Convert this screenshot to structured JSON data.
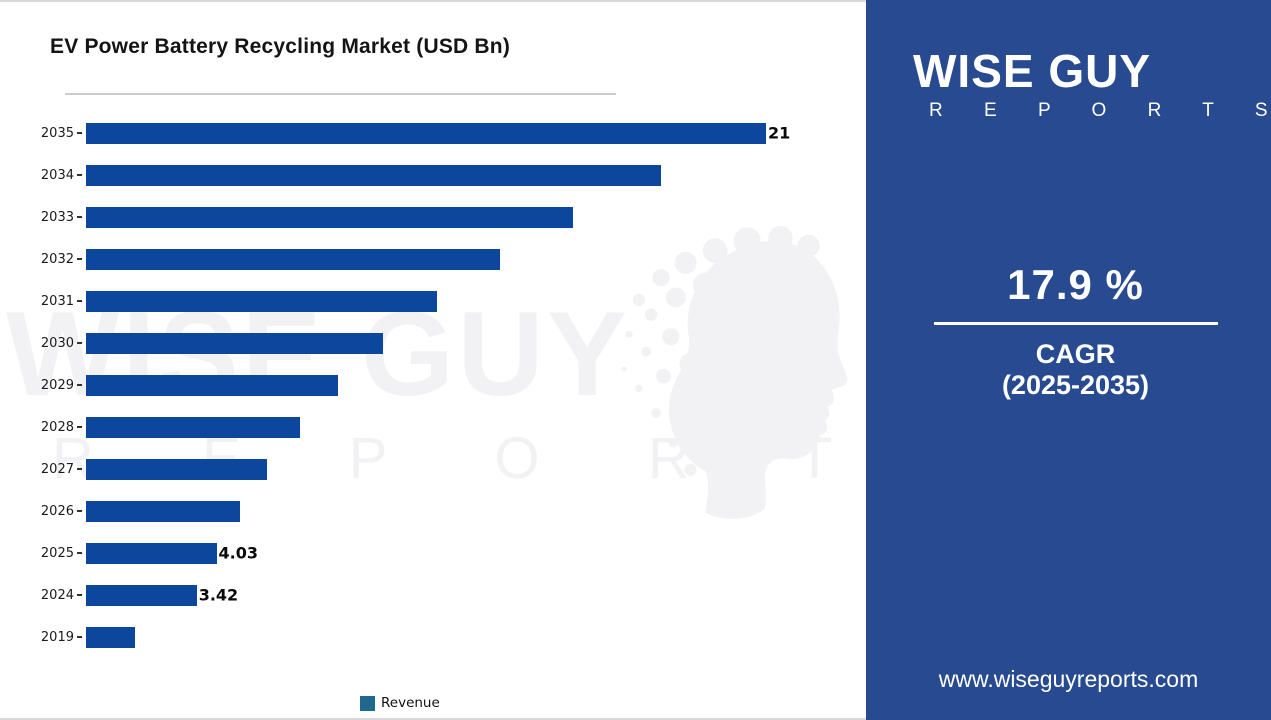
{
  "title": "EV Power Battery Recycling Market (USD Bn)",
  "chart_data": {
    "type": "bar",
    "orientation": "horizontal",
    "title": "EV Power Battery Recycling Market (USD Bn)",
    "categories": [
      "2035",
      "2034",
      "2033",
      "2032",
      "2031",
      "2030",
      "2029",
      "2028",
      "2027",
      "2026",
      "2025",
      "2024",
      "2019"
    ],
    "values": [
      21,
      17.75,
      15.05,
      12.77,
      10.83,
      9.18,
      7.79,
      6.61,
      5.6,
      4.75,
      4.03,
      3.42,
      1.5
    ],
    "bar_labels": [
      "21",
      "",
      "",
      "",
      "",
      "",
      "",
      "",
      "",
      "",
      "4.03",
      "3.42",
      ""
    ],
    "series_name": "Revenue",
    "xlabel": "",
    "ylabel": "",
    "xlim": [
      0,
      24
    ],
    "grid": false,
    "legend_position": "bottom",
    "bar_color": "#0d469d"
  },
  "legend": {
    "label": "Revenue",
    "marker_color": "#20698d"
  },
  "watermark": {
    "line1": "WISE GUY",
    "line2": "R E P O R T S"
  },
  "panel": {
    "background": "#274a90",
    "text_color": "#ffffff",
    "brand_line1": "WISE GUY",
    "brand_line2": "R E P O R T S",
    "cagr_value": "17.9 %",
    "cagr_line1": "CAGR",
    "cagr_line2": "(2025-2035)",
    "website": "www.wiseguyreports.com"
  }
}
